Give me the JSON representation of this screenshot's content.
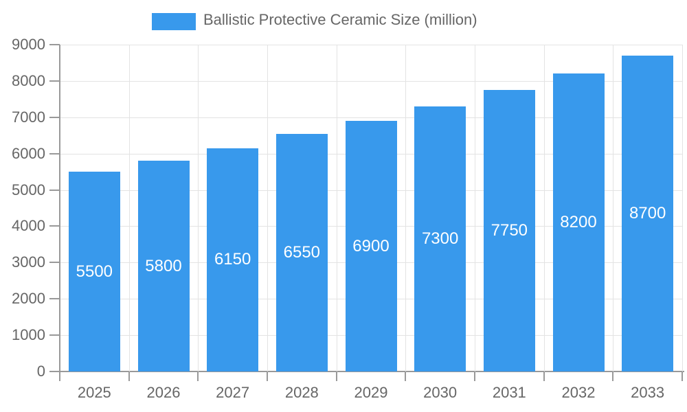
{
  "chart_data": {
    "type": "bar",
    "title": "",
    "legend_label": "Ballistic Protective Ceramic Size (million)",
    "legend_position": "top",
    "categories": [
      "2025",
      "2026",
      "2027",
      "2028",
      "2029",
      "2030",
      "2031",
      "2032",
      "2033"
    ],
    "series": [
      {
        "name": "Ballistic Protective Ceramic Size (million)",
        "values": [
          5500,
          5800,
          6150,
          6550,
          6900,
          7300,
          7750,
          8200,
          8700
        ]
      }
    ],
    "xlabel": "",
    "ylabel": "",
    "ylim": [
      0,
      9000
    ],
    "yticks": [
      0,
      1000,
      2000,
      3000,
      4000,
      5000,
      6000,
      7000,
      8000,
      9000
    ],
    "grid": true,
    "value_labels_inside_bars": true,
    "colors": {
      "bar": "#3899EC",
      "grid": "#E3E3E3",
      "axis": "#999999",
      "tick_text": "#666666",
      "value_label_text": "#FFFFFF",
      "background": "#FFFFFF"
    }
  }
}
